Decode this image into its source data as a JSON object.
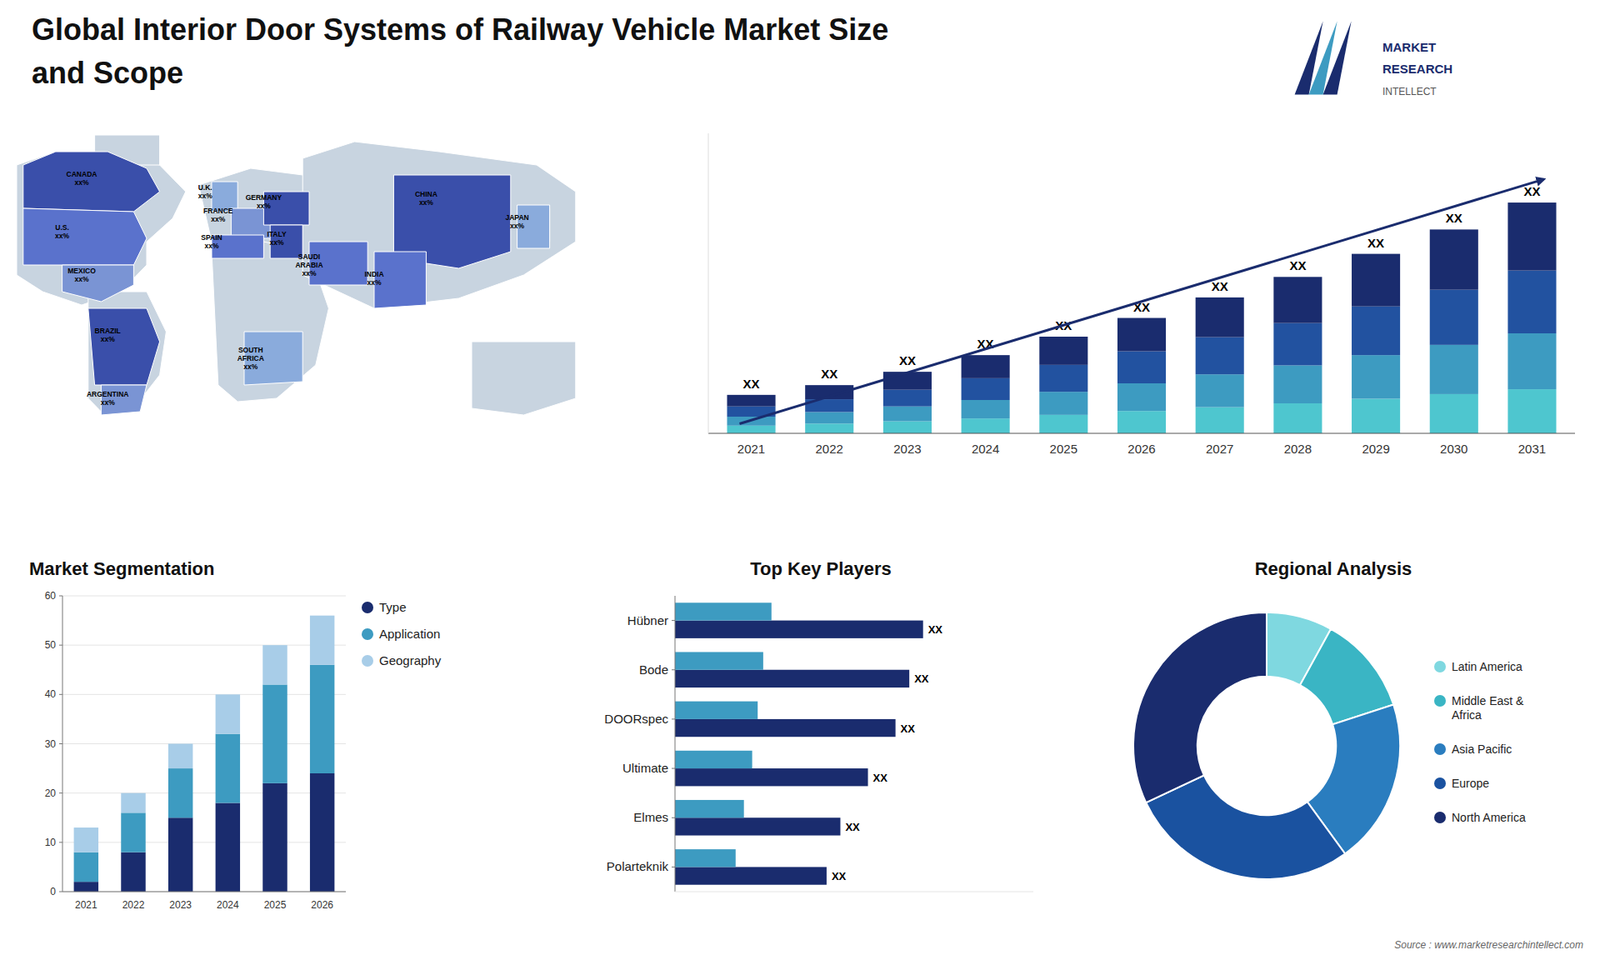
{
  "chart_data": [
    {
      "type": "bar",
      "stacked": true,
      "title": "Global Interior Door Systems of Railway Vehicle Market Size\nand Scope",
      "categories": [
        "2021",
        "2022",
        "2023",
        "2024",
        "2025",
        "2026",
        "2027",
        "2028",
        "2029",
        "2030",
        "2031"
      ],
      "series": [
        {
          "color": "#4ec6cf",
          "values": [
            0.3,
            0.38,
            0.47,
            0.58,
            0.72,
            0.87,
            1.02,
            1.17,
            1.35,
            1.53,
            1.72
          ]
        },
        {
          "color": "#3d9bc1",
          "values": [
            0.35,
            0.45,
            0.58,
            0.72,
            0.9,
            1.08,
            1.28,
            1.48,
            1.7,
            1.92,
            2.18
          ]
        },
        {
          "color": "#2252a0",
          "values": [
            0.4,
            0.5,
            0.65,
            0.85,
            1.05,
            1.25,
            1.45,
            1.65,
            1.9,
            2.15,
            2.45
          ]
        },
        {
          "color": "#1a2c6e",
          "values": [
            0.45,
            0.55,
            0.7,
            0.9,
            1.1,
            1.3,
            1.55,
            1.8,
            2.05,
            2.35,
            2.65
          ]
        }
      ],
      "ylim": [
        0,
        11.7
      ],
      "grid": false,
      "tick_labels": "x",
      "annotations": [
        "XX",
        "XX",
        "XX",
        "XX",
        "XX",
        "XX",
        "XX",
        "XX",
        "XX",
        "XX",
        "XX",
        "MARKET",
        "RESEARCH",
        "INTELLECT",
        "Source : www.marketresearchintellect.com"
      ]
    },
    {
      "type": "map",
      "annotations": [
        "CANADA\nxx%",
        "U.S.\nxx%",
        "MEXICO\nxx%",
        "BRAZIL\nxx%",
        "ARGENTINA\nxx%",
        "U.K.\nxx%",
        "FRANCE\nxx%",
        "SPAIN\nxx%",
        "GERMANY\nxx%",
        "ITALY\nxx%",
        "SOUTH\nAFRICA\nxx%",
        "SAUDI\nARABIA\nxx%",
        "CHINA\nxx%",
        "INDIA\nxx%",
        "JAPAN\nxx%"
      ]
    },
    {
      "type": "bar",
      "stacked": true,
      "title": "Market Segmentation",
      "categories": [
        "2021",
        "2022",
        "2023",
        "2024",
        "2025",
        "2026"
      ],
      "series": [
        {
          "name": "Type",
          "color": "#1a2c6e",
          "values": [
            2,
            8,
            15,
            18,
            22,
            24
          ]
        },
        {
          "name": "Application",
          "color": "#3d9bc1",
          "values": [
            6,
            8,
            10,
            14,
            20,
            22
          ]
        },
        {
          "name": "Geography",
          "color": "#a8cde8",
          "values": [
            5,
            4,
            5,
            8,
            8,
            10
          ]
        }
      ],
      "ylim": [
        0,
        60
      ],
      "yticks": [
        0,
        10,
        20,
        30,
        40,
        50,
        60
      ],
      "grid": true,
      "legend": "right"
    },
    {
      "type": "bar",
      "orientation": "horizontal",
      "title": "Top Key Players",
      "categories": [
        "Hübner",
        "Bode",
        "DOORspec",
        "Ultimate",
        "Elmes",
        "Polarteknik"
      ],
      "series": [
        {
          "color": "#1a2c6e",
          "values": [
            9.0,
            8.5,
            8.0,
            7.0,
            6.0,
            5.5
          ]
        },
        {
          "color": "#3d9bc1",
          "values": [
            3.5,
            3.2,
            3.0,
            2.8,
            2.5,
            2.2
          ]
        }
      ],
      "xlim": [
        0,
        13
      ],
      "tick_labels": "y",
      "annotations": [
        "XX",
        "XX",
        "XX",
        "XX",
        "XX",
        "XX"
      ]
    },
    {
      "type": "donut",
      "title": "Regional Analysis",
      "categories": [
        "Latin America",
        "Middle East &\nAfrica",
        "Asia Pacific",
        "Europe",
        "North America"
      ],
      "values": [
        8,
        12,
        20,
        28,
        32
      ],
      "colors": [
        "#7fd8e0",
        "#3ab5c4",
        "#2a7dbf",
        "#1a52a0",
        "#1a2c6e"
      ],
      "legend": "right"
    }
  ]
}
